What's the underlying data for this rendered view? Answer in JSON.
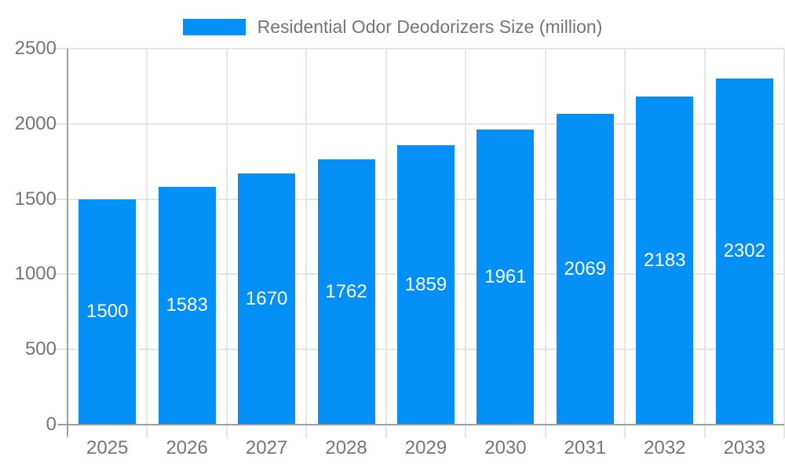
{
  "legend": {
    "label": "Residential Odor Deodorizers Size (million)"
  },
  "chart_data": {
    "type": "bar",
    "title": "Residential Odor Deodorizers Size (million)",
    "categories": [
      "2025",
      "2026",
      "2027",
      "2028",
      "2029",
      "2030",
      "2031",
      "2032",
      "2033"
    ],
    "values": [
      1500,
      1583,
      1670,
      1762,
      1859,
      1961,
      2069,
      2183,
      2302
    ],
    "xlabel": "",
    "ylabel": "",
    "ylim": [
      0,
      2500
    ],
    "yticks": [
      0,
      500,
      1000,
      1500,
      2000,
      2500
    ],
    "grid": true,
    "legend_position": "top-center",
    "value_labels": "inside-center",
    "colors": {
      "bar": "#0590f8",
      "value_label": "#ffffff",
      "axis_text": "#757575",
      "gridline": "#e6e6e6",
      "axis_line": "#9e9e9e",
      "background": "#ffffff"
    }
  }
}
